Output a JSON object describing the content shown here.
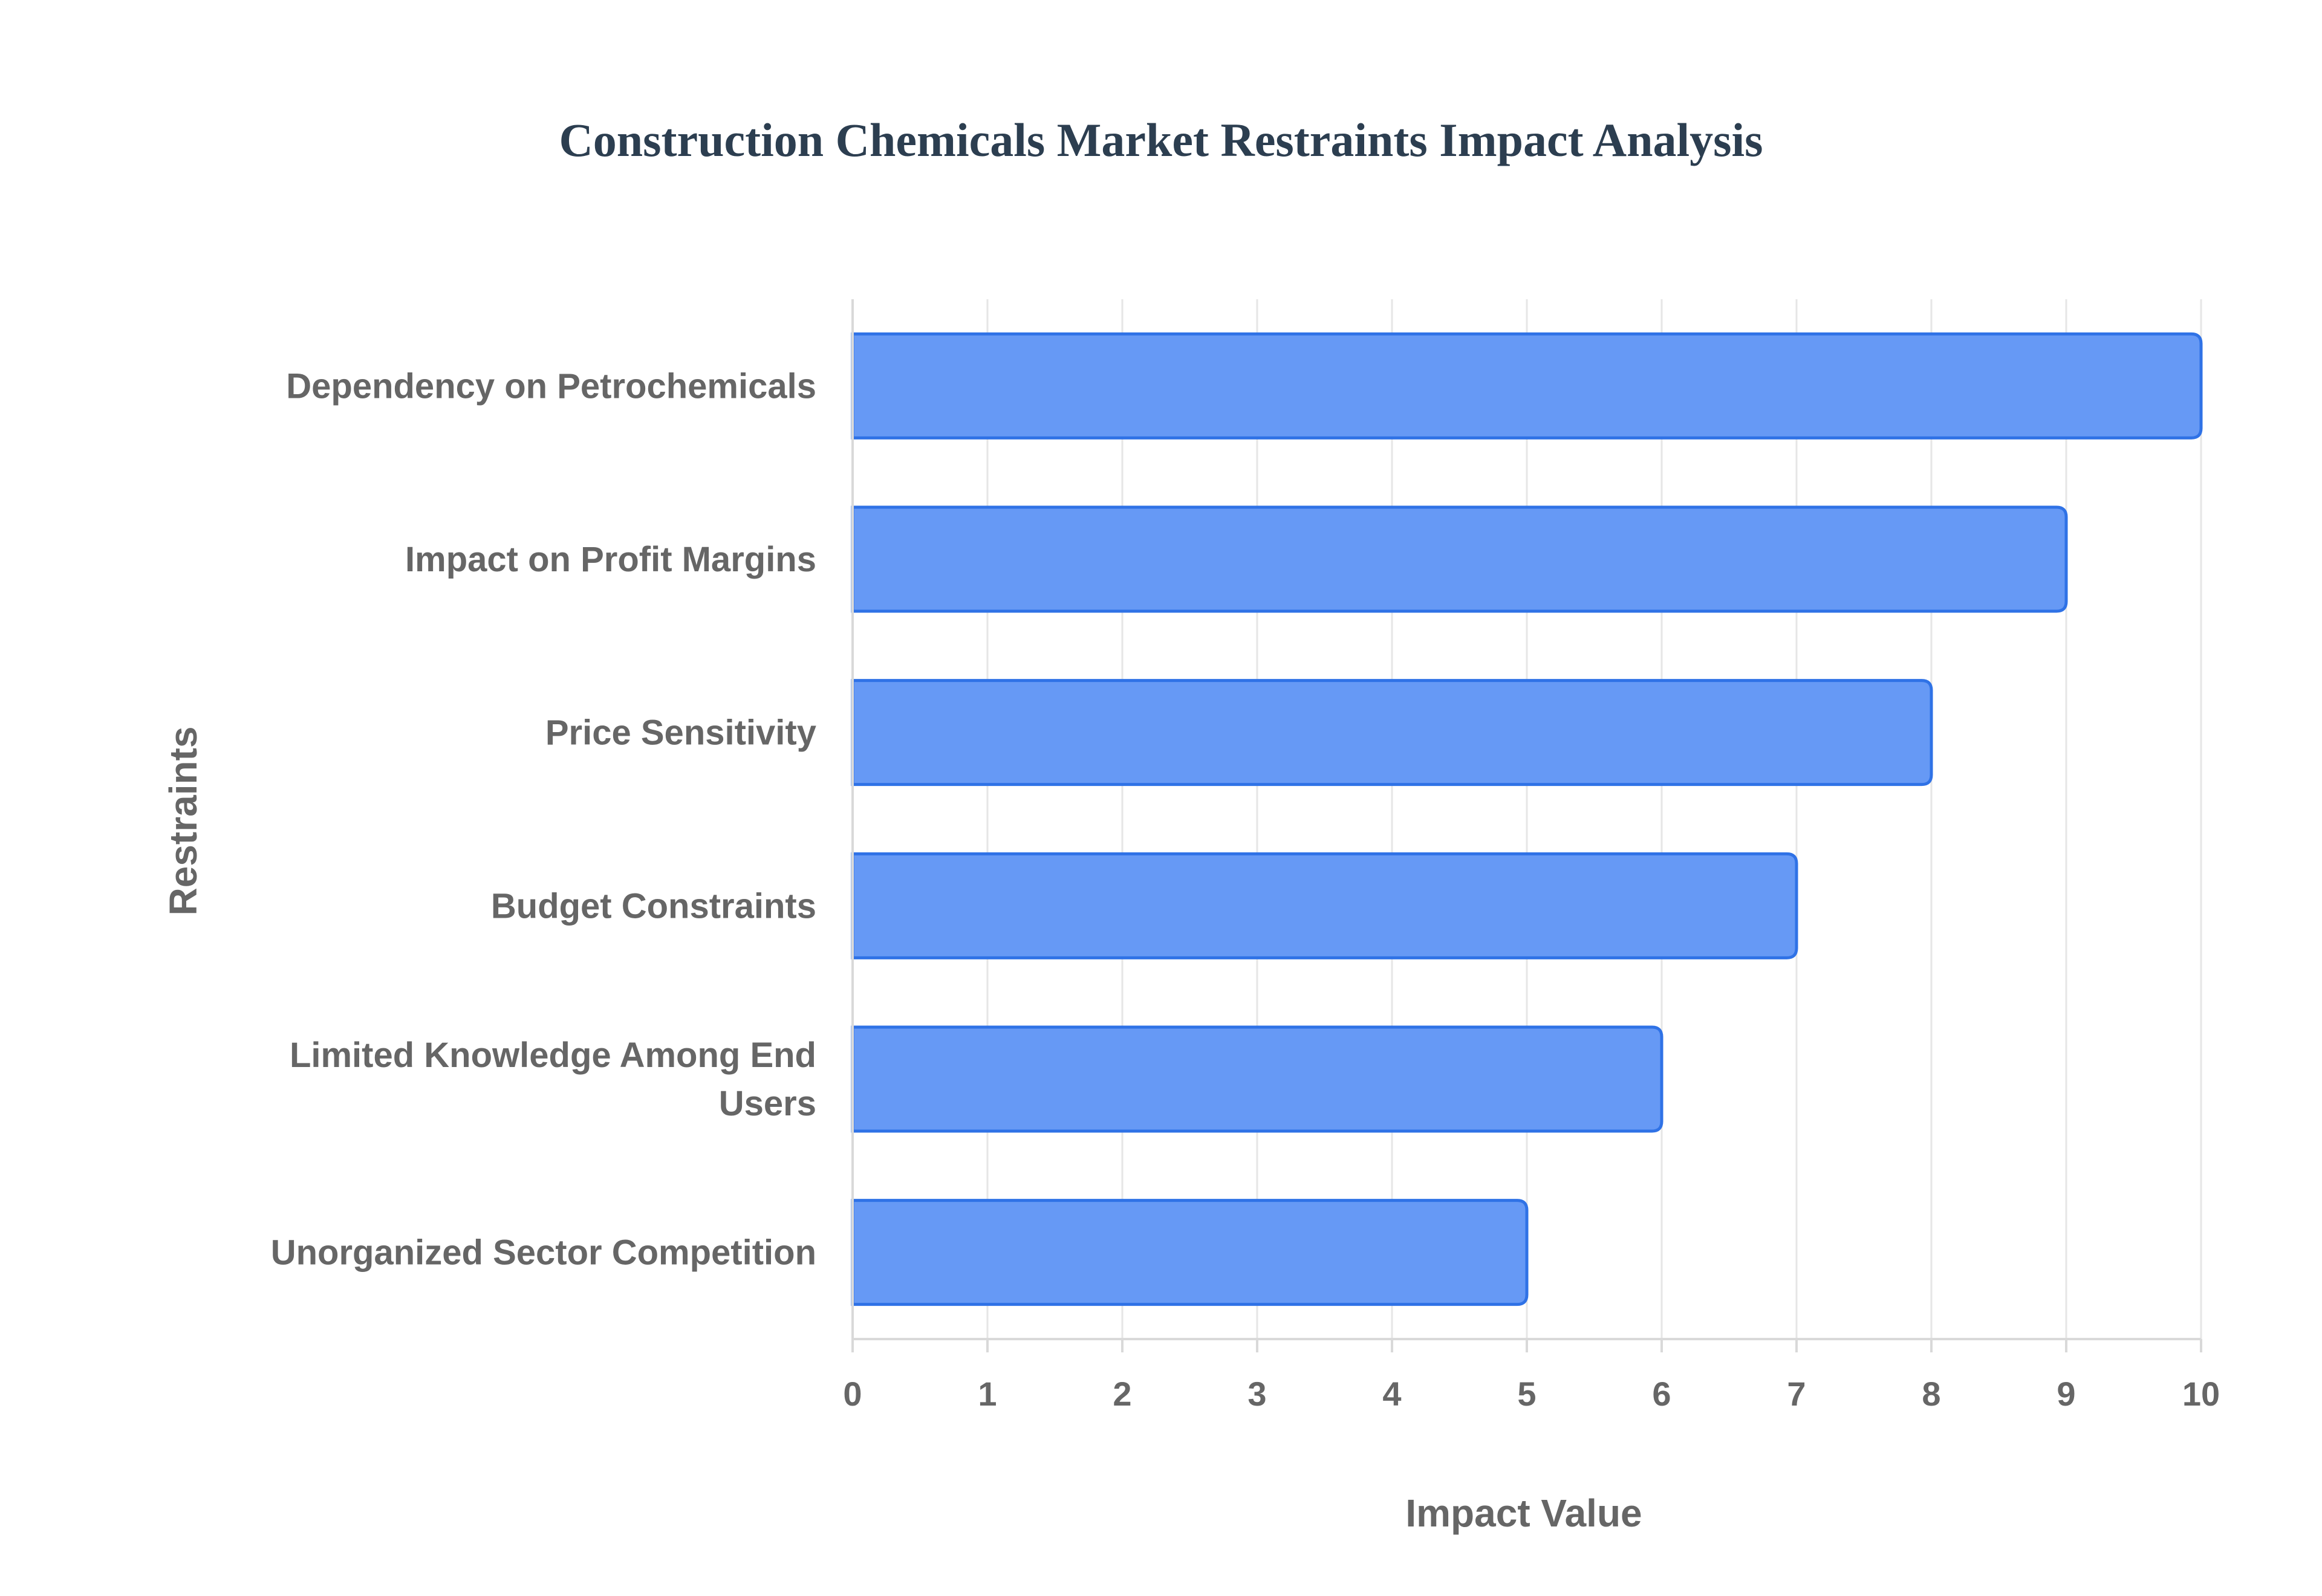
{
  "chart_data": {
    "type": "bar",
    "orientation": "horizontal",
    "title": "Construction Chemicals Market Restraints Impact Analysis",
    "xlabel": "Impact Value",
    "ylabel": "Restraints",
    "categories": [
      "Dependency on Petrochemicals",
      "Impact on Profit Margins",
      "Price Sensitivity",
      "Budget Constraints",
      "Limited Knowledge Among End Users",
      "Unorganized Sector Competition"
    ],
    "category_label_lines": [
      [
        "Dependency on Petrochemicals"
      ],
      [
        "Impact on Profit Margins"
      ],
      [
        "Price Sensitivity"
      ],
      [
        "Budget Constraints"
      ],
      [
        "Limited Knowledge Among End",
        "Users"
      ],
      [
        "Unorganized Sector Competition"
      ]
    ],
    "values": [
      10,
      9,
      8,
      7,
      6,
      5
    ],
    "xlim": [
      0,
      10
    ],
    "xticks": [
      "0",
      "1",
      "2",
      "3",
      "4",
      "5",
      "6",
      "7",
      "8",
      "9",
      "10"
    ],
    "grid": true,
    "legend": "none",
    "bar_color": "#6699f5",
    "bar_edge_color": "#2f72e6"
  }
}
